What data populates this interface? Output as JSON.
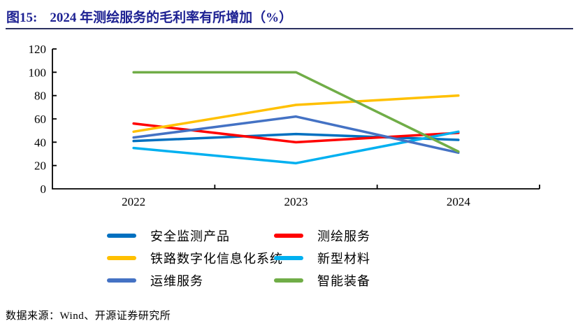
{
  "header": {
    "label": "图15:",
    "title": "2024 年测绘服务的毛利率有所增加（%）",
    "accent_color": "#1e2293"
  },
  "chart_data": {
    "type": "line",
    "title": "",
    "xlabel": "",
    "ylabel": "",
    "categories": [
      "2022",
      "2023",
      "2024"
    ],
    "series": [
      {
        "name": "安全监测产品",
        "color": "#0070C0",
        "values": [
          41,
          47,
          42
        ]
      },
      {
        "name": "测绘服务",
        "color": "#FF0000",
        "values": [
          56,
          40,
          48
        ]
      },
      {
        "name": "铁路数字化信息化系统",
        "color": "#FFC000",
        "values": [
          49,
          72,
          80
        ]
      },
      {
        "name": "新型材料",
        "color": "#00B0F0",
        "values": [
          35,
          22,
          49
        ]
      },
      {
        "name": "运维服务",
        "color": "#4472C4",
        "values": [
          44,
          62,
          31
        ]
      },
      {
        "name": "智能装备",
        "color": "#70AD47",
        "values": [
          100,
          100,
          32
        ]
      }
    ],
    "ylim": [
      0,
      120
    ],
    "ytick_step": 20,
    "grid": false,
    "legend_position": "bottom"
  },
  "footer": {
    "source": "数据来源：Wind、开源证券研究所"
  }
}
